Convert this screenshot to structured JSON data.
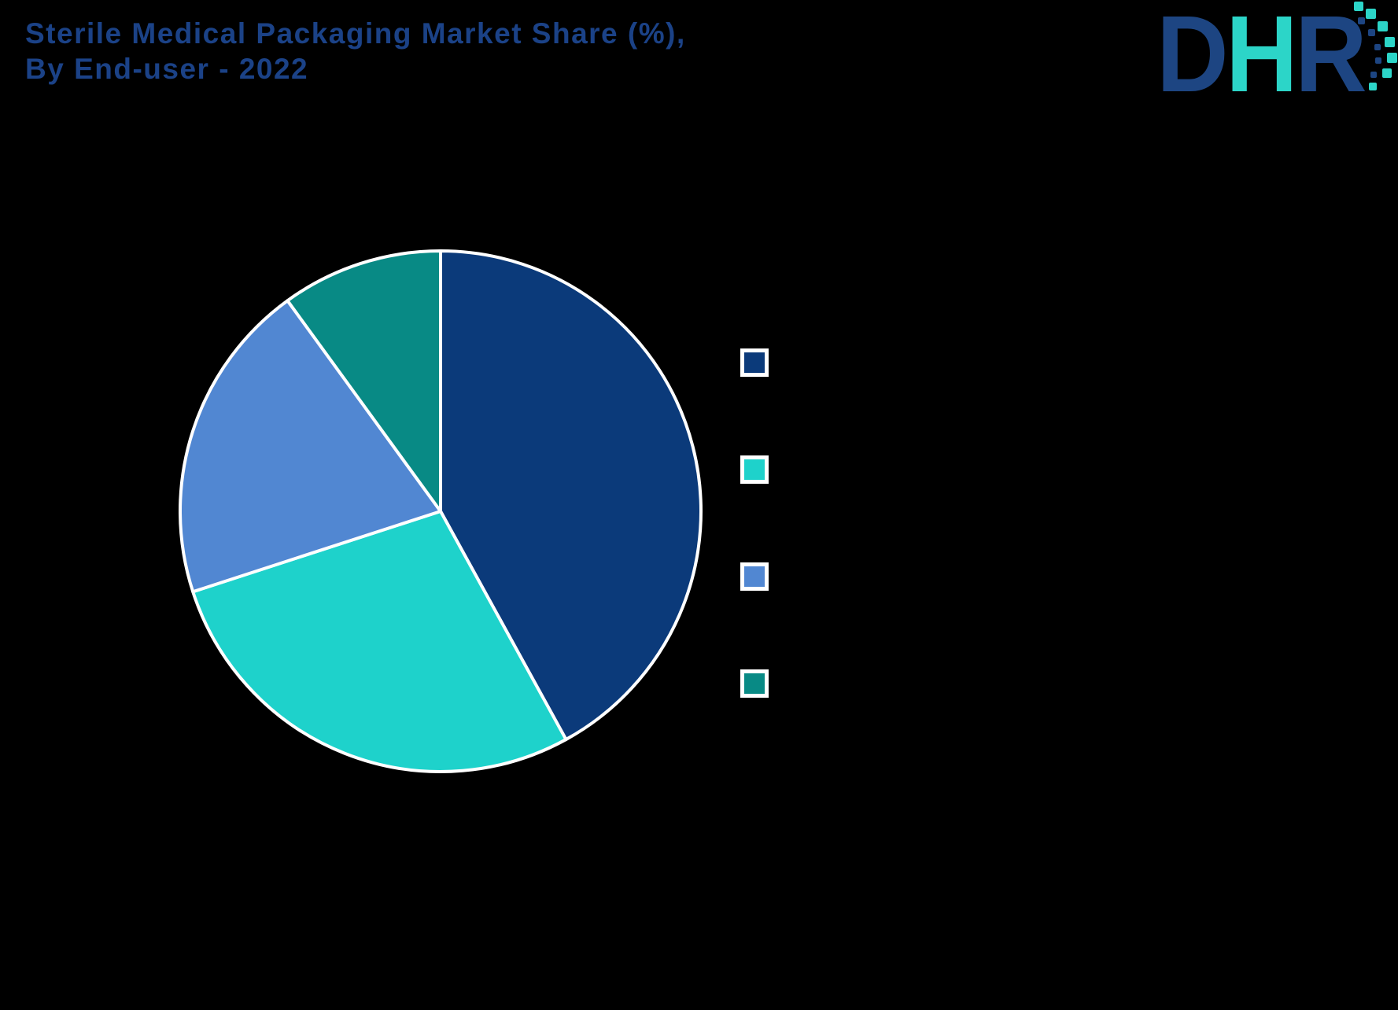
{
  "header": {
    "title_line1": "Sterile Medical Packaging Market Share (%),",
    "title_line2": "By End-user - 2022"
  },
  "logo": {
    "letters": [
      "D",
      "H",
      "R"
    ]
  },
  "colors": {
    "background": "#000000",
    "title_text": "#1b4287",
    "logo_navy": "#1d4582",
    "logo_teal": "#2cd5c8",
    "slice_stroke": "#ffffff",
    "legend_marker_border": "#ffffff"
  },
  "chart_data": {
    "type": "pie",
    "title": "Sterile Medical Packaging Market Share (%), By End-user - 2022",
    "unit": "%",
    "categories": [
      "",
      "",
      "",
      ""
    ],
    "values": [
      42,
      28,
      20,
      10
    ],
    "colors": [
      "#0b3a7a",
      "#1ed2cb",
      "#5187d2",
      "#088a85"
    ],
    "start_angle_deg": 0,
    "direction": "clockwise",
    "legend_position": "right",
    "data_labels_visible": false,
    "legend_labels_visible": false
  }
}
